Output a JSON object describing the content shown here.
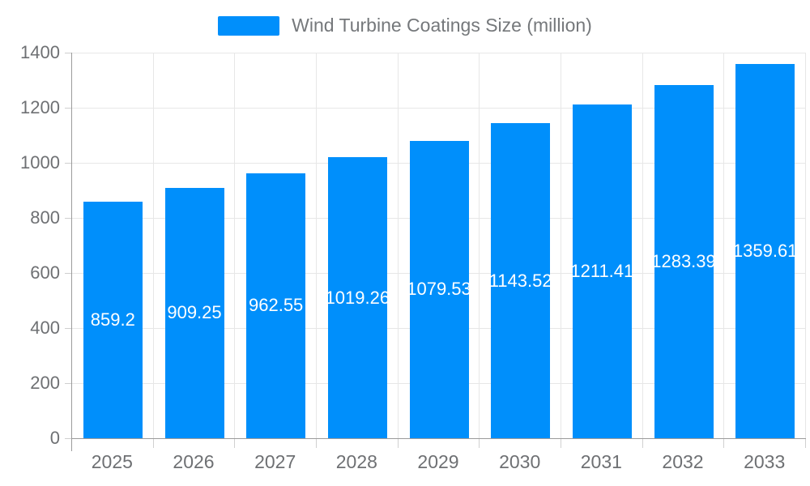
{
  "chart_data": {
    "type": "bar",
    "title": "Wind Turbine Coatings Size (million)",
    "legend": [
      {
        "label": "Wind Turbine Coatings Size (million)",
        "color": "#008FFB"
      }
    ],
    "legend_position": "top",
    "categories": [
      "2025",
      "2026",
      "2027",
      "2028",
      "2029",
      "2030",
      "2031",
      "2032",
      "2033"
    ],
    "values": [
      859.2,
      909.25,
      962.55,
      1019.26,
      1079.53,
      1143.52,
      1211.41,
      1283.39,
      1359.61
    ],
    "data_labels": [
      "859.2",
      "909.25",
      "962.55",
      "1019.26",
      "1079.53",
      "1143.52",
      "1211.41",
      "1283.39",
      "1359.61"
    ],
    "xlabel": "",
    "ylabel": "",
    "ylim": [
      0,
      1400
    ],
    "yticks": [
      0,
      200,
      400,
      600,
      800,
      1000,
      1200,
      1400
    ],
    "grid": true,
    "colors": {
      "bar": "#008FFB",
      "grid": "#e7e7e7",
      "axis": "#9b9b9b",
      "tick_label": "#6e7073",
      "data_label": "#ffffff",
      "legend_text": "#75787b",
      "background": "#ffffff"
    }
  }
}
